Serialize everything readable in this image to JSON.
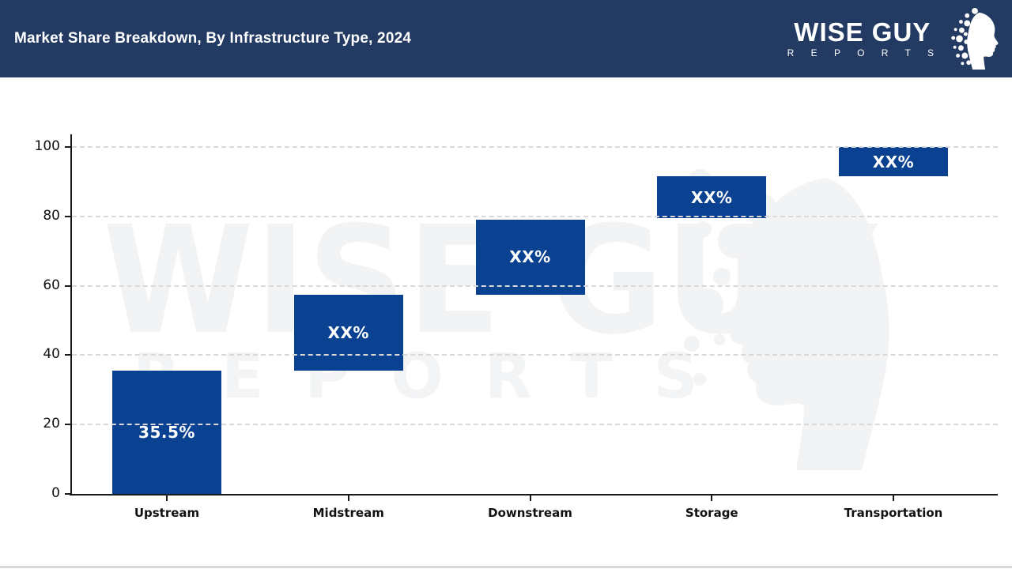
{
  "header": {
    "title": "Market Share Breakdown, By Infrastructure Type, 2024",
    "bg_color": "#233a63",
    "logo": {
      "primary": "WISE GUY",
      "secondary": "R E P O R T S"
    }
  },
  "watermark": {
    "primary": "WISE GUY",
    "secondary": "REPORTS"
  },
  "chart_data": {
    "type": "bar",
    "subtype": "waterfall",
    "title": "Market Share Breakdown, By Infrastructure Type, 2024",
    "xlabel": "",
    "ylabel": "",
    "categories": [
      "Upstream",
      "Midstream",
      "Downstream",
      "Storage",
      "Transportation"
    ],
    "bars": [
      {
        "category": "Upstream",
        "start": 0,
        "end": 35.5,
        "label": "35.5%"
      },
      {
        "category": "Midstream",
        "start": 35.5,
        "end": 57.5,
        "label": "XX%"
      },
      {
        "category": "Downstream",
        "start": 57.5,
        "end": 79.0,
        "label": "XX%"
      },
      {
        "category": "Storage",
        "start": 79.5,
        "end": 91.5,
        "label": "XX%"
      },
      {
        "category": "Transportation",
        "start": 91.5,
        "end": 100.0,
        "label": "XX%"
      }
    ],
    "y_ticks": [
      0,
      20,
      40,
      60,
      80,
      100
    ],
    "ylim": [
      0,
      105
    ],
    "grid": "horizontal-dashed",
    "legend": "none",
    "colors": {
      "bar": "#0a4191",
      "grid": "#d9d9d9",
      "axis": "#1a1a1a",
      "bar_label_text": "#ffffff",
      "header_bg": "#233a63",
      "watermark": "#f2f3f5"
    }
  }
}
